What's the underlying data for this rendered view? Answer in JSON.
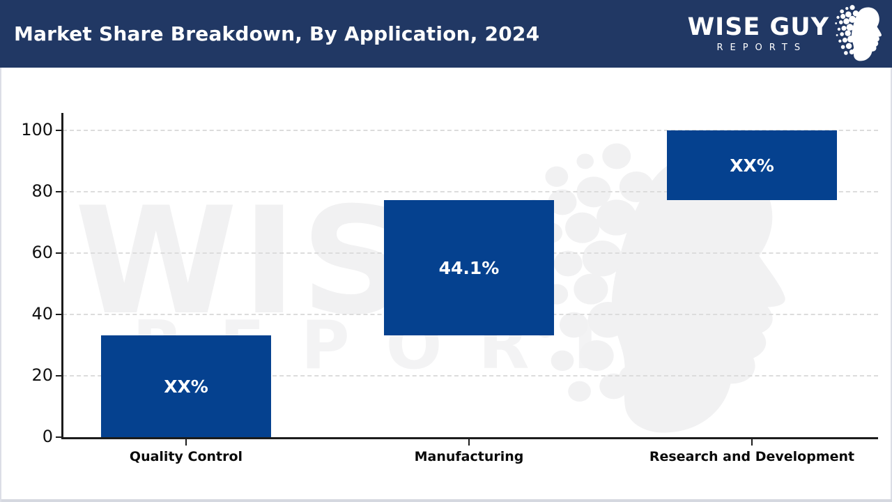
{
  "header": {
    "logo": {
      "line1": "WISE GUY",
      "line2": "REPORTS"
    }
  },
  "watermark": {
    "line1": "WISE",
    "line2": "REPORTS"
  },
  "chart_data": {
    "type": "bar",
    "subtype": "waterfall",
    "title": "Market Share Breakdown, By Application, 2024",
    "categories": [
      "Quality Control",
      "Manufacturing",
      "Research and Development"
    ],
    "segments": [
      {
        "category": "Quality Control",
        "start": 0,
        "end": 33.1,
        "value": 33.1,
        "label": "XX%"
      },
      {
        "category": "Manufacturing",
        "start": 33.1,
        "end": 77.2,
        "value": 44.1,
        "label": "44.1%"
      },
      {
        "category": "Research and Development",
        "start": 77.2,
        "end": 100,
        "value": 22.8,
        "label": "XX%"
      }
    ],
    "yticks": [
      0,
      20,
      40,
      60,
      80,
      100
    ],
    "ylim": [
      0,
      105
    ],
    "xlabel": "",
    "ylabel": "",
    "grid": "horizontal-dashed",
    "legend": "none",
    "colors": {
      "bar": "#05418f",
      "bar_label": "#ffffff",
      "axis": "#1c1c1c",
      "grid": "#dcdcdc",
      "header_bg": "#213864",
      "watermark": "#f1f1f2"
    }
  }
}
